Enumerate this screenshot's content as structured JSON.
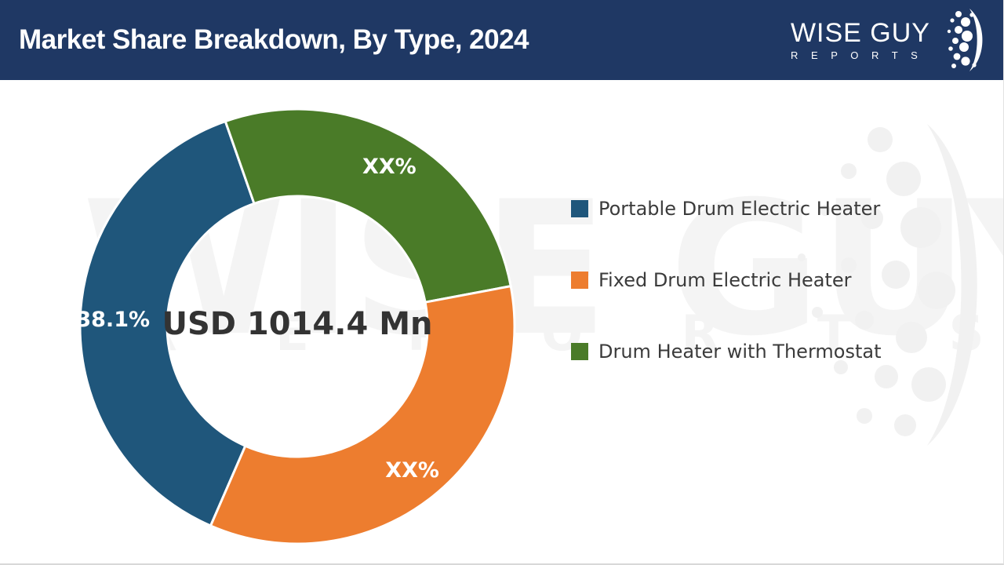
{
  "header": {
    "title": "Market Share Breakdown, By Type, 2024",
    "bg_color": "#1f3864",
    "logo": {
      "name": "WISE GUY",
      "sub": "R E P O R T S"
    }
  },
  "chart_data": {
    "type": "pie",
    "subtype": "donut",
    "title": "Market Share Breakdown, By Type, 2024",
    "center_label": "USD 1014.4 Mn",
    "legend_position": "right",
    "start_angle_deg": 203.5,
    "draw_order": [
      0,
      2,
      1
    ],
    "labels_color": "#ffffff",
    "series": [
      {
        "name": "Portable Drum Electric Heater",
        "display_label": "38.1%",
        "value_pct": 38.1,
        "color": "#1f567b"
      },
      {
        "name": "Fixed Drum Electric Heater",
        "display_label": "XX%",
        "value_pct": 34.5,
        "color": "#ed7d2f"
      },
      {
        "name": "Drum Heater with Thermostat",
        "display_label": "XX%",
        "value_pct": 27.4,
        "color": "#4a7b28"
      }
    ]
  },
  "watermark": {
    "line1": "WISE GUY",
    "line2": "R E P O R T S"
  }
}
